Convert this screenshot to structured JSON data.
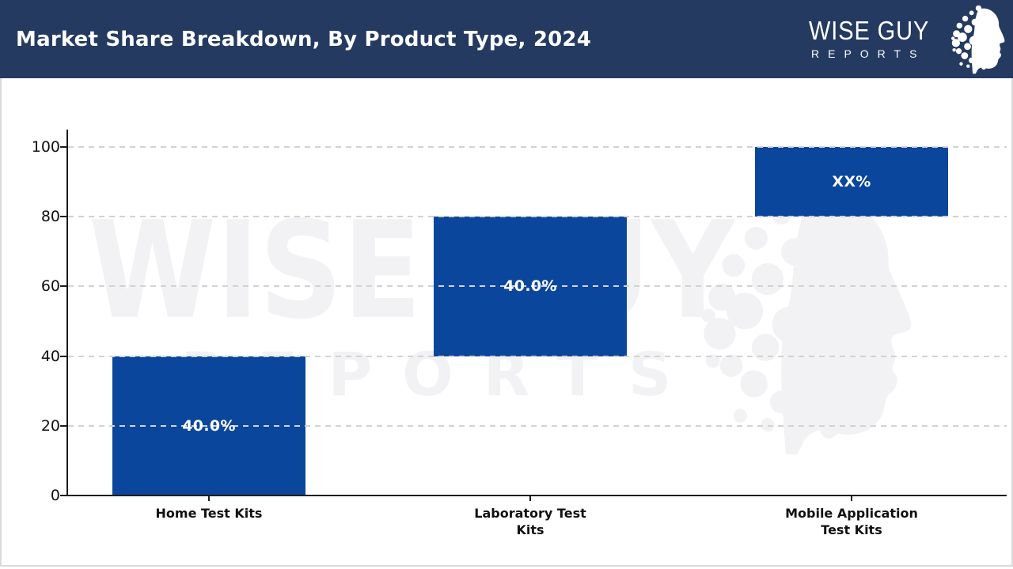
{
  "header": {
    "title": "Market Share Breakdown, By Product Type, 2024",
    "bg_color": "#243a61",
    "logo": {
      "line1": "WISE GUY",
      "line2": "REPORTS",
      "color": "#ffffff"
    }
  },
  "watermark": {
    "line1": "WISE GUY",
    "line2": "REPORTS",
    "color": "#f2f2f4"
  },
  "chart_data": {
    "type": "bar",
    "variant": "waterfall-cumulative",
    "title": "Market Share Breakdown, By Product Type, 2024",
    "categories": [
      "Home Test Kits",
      "Laboratory Test\nKits",
      "Mobile Application\nTest Kits"
    ],
    "segments": [
      {
        "category": "Home Test Kits",
        "start": 0,
        "end": 40,
        "label": "40.0%"
      },
      {
        "category": "Laboratory Test\nKits",
        "start": 40,
        "end": 80,
        "label": "40.0%"
      },
      {
        "category": "Mobile Application\nTest Kits",
        "start": 80,
        "end": 100,
        "label": "XX%"
      }
    ],
    "xlabel": "",
    "ylabel": "",
    "ylim": [
      0,
      105
    ],
    "yticks": [
      0,
      20,
      40,
      60,
      80,
      100
    ],
    "grid": {
      "axis": "y",
      "style": "dashed",
      "color": "#d2d2d2",
      "on_top_of_bars": true
    },
    "legend": "none",
    "bar_color": "#0a469b",
    "bar_label_color": "#ffffff",
    "axis_color": "#1b1b1b",
    "tick_label_color": "#111111"
  }
}
